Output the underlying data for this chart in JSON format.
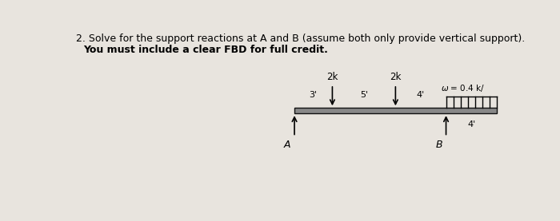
{
  "title_line1": "2. Solve for the support reactions at A and B (assume both only provide vertical support).",
  "title_line2": "You must include a clear FBD for full credit.",
  "bg_color": "#e8e4de",
  "load1_label": "2k",
  "load2_label": "2k",
  "dist_load_label": "ω = 0.4 k/",
  "dim_3_label": "3'",
  "dim_5_label": "5'",
  "dim_4a_label": "4'",
  "dim_4b_label": "4'",
  "label_A": "A",
  "label_B": "B",
  "beam_facecolor": "#888888",
  "beam_edgecolor": "#111111"
}
